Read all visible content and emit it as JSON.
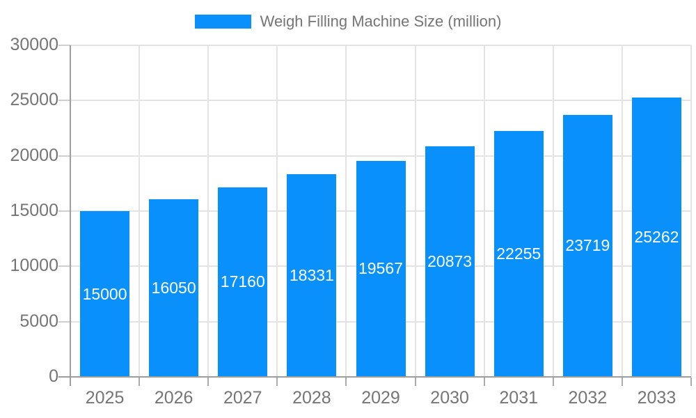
{
  "chart_data": {
    "type": "bar",
    "title": "",
    "legend": "Weigh Filling Machine Size (million)",
    "legend_position": "top-center",
    "categories": [
      "2025",
      "2026",
      "2027",
      "2028",
      "2029",
      "2030",
      "2031",
      "2032",
      "2033"
    ],
    "series": [
      {
        "name": "Weigh Filling Machine Size (million)",
        "values": [
          15000,
          16050,
          17160,
          18331,
          19567,
          20873,
          22255,
          23719,
          25262
        ]
      }
    ],
    "xlabel": "",
    "ylabel": "",
    "ylim": [
      0,
      30000
    ],
    "yticks": [
      0,
      5000,
      10000,
      15000,
      20000,
      25000,
      30000
    ],
    "grid": true,
    "value_labels": "inside-center",
    "colors": {
      "bar": "#0990fb",
      "bar_label_text": "#ffffff",
      "axis_line": "#9e9e9e",
      "gridline": "#e3e3e3",
      "axis_text": "#757575",
      "background": "#ffffff"
    }
  }
}
